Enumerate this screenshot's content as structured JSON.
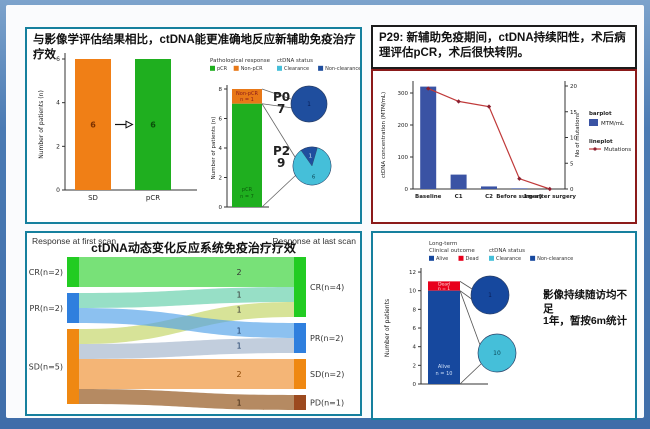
{
  "slide": {
    "frame_color": "#4a7ab3",
    "panel_border_color": "#16809e",
    "title_box_border_color": "#1c1c1c",
    "chart_box_border_color": "#8b1a1a"
  },
  "panels": {
    "top_left": {
      "title": "与影像学评估结果相比，ctDNA能更准确地反应新辅助免疫治疗疗效"
    },
    "top_right": {
      "title": "P29: 新辅助免疫期间，ctDNA持续阳性，术后病理评估pCR，术后很快转阴。"
    },
    "bottom_left": {
      "title": "ctDNA动态变化反应系统免疫治疗疗效",
      "left_label": "Response at first scan",
      "right_label": "Response at last scan"
    },
    "bottom_right": {
      "note_line1": "影像持续随访均不足",
      "note_line2": "1年，暂按6m统计"
    }
  },
  "chart_data": [
    {
      "id": "imaging_response_bars",
      "type": "bar",
      "categories": [
        "SD",
        "pCR"
      ],
      "values": [
        6,
        6
      ],
      "value_labels": [
        "6",
        "6"
      ],
      "bar_colors": [
        "#F07F16",
        "#1FAF1F"
      ],
      "value_label_colors": [
        "#7A3000",
        "#0A4F0A"
      ],
      "ylabel": "Number of patients (n)",
      "yticks": [
        0,
        2,
        4,
        6
      ],
      "ylim": [
        0,
        6
      ],
      "arrow_between_bars": true
    },
    {
      "id": "pathological_response_vs_ctdna",
      "type": "stacked_bar_with_pies",
      "ylabel": "Number of patients (n)",
      "yticks": [
        0,
        2,
        4,
        6,
        8
      ],
      "ylim": [
        0,
        8
      ],
      "legend_groups": [
        {
          "title_lines": [
            "Pathological response"
          ],
          "items": [
            {
              "label": "pCR",
              "color": "#1FAF1F"
            },
            {
              "label": "Non-pCR",
              "color": "#E87817"
            }
          ]
        },
        {
          "title_lines": [
            "ctDNA status"
          ],
          "items": [
            {
              "label": "Clearance",
              "color": "#45BFD9"
            },
            {
              "label": "Non-clearance",
              "color": "#1F4E9E"
            }
          ]
        }
      ],
      "segments": [
        {
          "label": "Non-pCR",
          "sub": "n = 1",
          "value": 1,
          "color": "#E87817",
          "text_color": "#8B1A1A"
        },
        {
          "label": "pCR",
          "sub": "n = 7",
          "value": 7,
          "color": "#1FAF1F",
          "text_color": "#0A5A0A"
        }
      ],
      "pies": [
        {
          "annotation_lines": [
            "P0",
            "7"
          ],
          "start_angle": -90,
          "slices": [
            {
              "value": 1,
              "color": "#1F4E9E",
              "label": "1",
              "label_color": "#081c54"
            }
          ]
        },
        {
          "annotation_lines": [
            "P2",
            "9"
          ],
          "start_angle": -125,
          "slices": [
            {
              "value": 1,
              "color": "#1F4E9E",
              "label": "1",
              "label_color": "#cfe9f4"
            },
            {
              "value": 6,
              "color": "#45BFD9",
              "label": "6",
              "label_color": "#0B4A5A"
            }
          ]
        }
      ]
    },
    {
      "id": "p29_ctdna_dynamics",
      "type": "bar_line_combo",
      "categories": [
        "Baseline",
        "C1",
        "C2",
        "Before surgery",
        "1m after surgery"
      ],
      "bar_series": {
        "name": "MTM/mL",
        "color": "#3A53A4",
        "values": [
          320,
          45,
          8,
          2,
          0
        ]
      },
      "line_series": {
        "name": "Mutations",
        "color": "#C03A3A",
        "marker_color": "#8B2030",
        "values": [
          19.5,
          17,
          16,
          2,
          0
        ]
      },
      "ylabel_left": "ctDNA concentration (MTM/mL)",
      "ylabel_right": "No of mutations",
      "yticks_left": [
        0,
        100,
        200,
        300
      ],
      "yticks_right": [
        0,
        5,
        10,
        15,
        20
      ],
      "ylim_left": [
        0,
        340
      ],
      "ylim_right": [
        0,
        21.25
      ],
      "legend": {
        "bar_title": "barplot",
        "bar_label": "MTM/mL",
        "line_title": "lineplot",
        "line_label": "Mutations"
      }
    },
    {
      "id": "response_sankey",
      "type": "sankey",
      "left_nodes": [
        {
          "label": "CR(n=2)",
          "n": 2,
          "color": "#22CC22"
        },
        {
          "label": "PR(n=2)",
          "n": 2,
          "color": "#2F7FDE"
        },
        {
          "label": "SD(n=5)",
          "n": 5,
          "color": "#EF8812"
        }
      ],
      "right_nodes": [
        {
          "label": "CR(n=4)",
          "n": 4,
          "color": "#22CC22"
        },
        {
          "label": "PR(n=2)",
          "n": 2,
          "color": "#2F7FDE"
        },
        {
          "label": "SD(n=2)",
          "n": 2,
          "color": "#EF8812"
        },
        {
          "label": "PD(n=1)",
          "n": 1,
          "color": "#9C4A1F"
        }
      ],
      "flows": [
        {
          "from": 0,
          "to": 0,
          "value": 2,
          "color": "#3fd43f",
          "opacity": 0.7,
          "label_color": "#333333"
        },
        {
          "from": 1,
          "to": 0,
          "value": 1,
          "color": "#52c9a0",
          "opacity": 0.6,
          "label_color": "#333333"
        },
        {
          "from": 2,
          "to": 0,
          "value": 1,
          "color": "#b7cc44",
          "opacity": 0.55,
          "label_color": "#333333"
        },
        {
          "from": 1,
          "to": 1,
          "value": 1,
          "color": "#4f9fe8",
          "opacity": 0.65,
          "label_color": "#1a3a66"
        },
        {
          "from": 2,
          "to": 1,
          "value": 1,
          "color": "#aebdd2",
          "opacity": 0.75,
          "label_color": "#1a3a66"
        },
        {
          "from": 2,
          "to": 2,
          "value": 2,
          "color": "#f2a85e",
          "opacity": 0.85,
          "label_color": "#8a4500"
        },
        {
          "from": 2,
          "to": 3,
          "value": 1,
          "color": "#a87646",
          "opacity": 0.85,
          "label_color": "#3a2410"
        }
      ]
    },
    {
      "id": "long_term_outcome_vs_ctdna",
      "type": "stacked_bar_with_pies",
      "ylabel": "Number of patients",
      "yticks": [
        0,
        2,
        4,
        6,
        8,
        10,
        12
      ],
      "ylim": [
        0,
        12
      ],
      "legend_groups": [
        {
          "title_lines": [
            "Long-term",
            "Clinical outcome"
          ],
          "items": [
            {
              "label": "Alive",
              "color": "#16489E"
            },
            {
              "label": "Dead",
              "color": "#E8001C"
            }
          ]
        },
        {
          "title_lines": [
            "ctDNA status"
          ],
          "items": [
            {
              "label": "Clearance",
              "color": "#45BFD9"
            },
            {
              "label": "Non-clearance",
              "color": "#16489E"
            }
          ]
        }
      ],
      "segments": [
        {
          "label": "Dead",
          "sub": "n = 1",
          "value": 1,
          "color": "#E8001C",
          "text_color": "#FFE2E2"
        },
        {
          "label": "Alive",
          "sub": "n = 10",
          "value": 10,
          "color": "#16489E",
          "text_color": "#CFE0F8"
        }
      ],
      "pies": [
        {
          "start_angle": -90,
          "slices": [
            {
              "value": 1,
              "color": "#16489E",
              "label": "1",
              "label_color": "#081c54"
            }
          ]
        },
        {
          "start_angle": -90,
          "slices": [
            {
              "value": 10,
              "color": "#45BFD9",
              "label": "10",
              "label_color": "#0B4A5A"
            }
          ]
        }
      ]
    }
  ]
}
